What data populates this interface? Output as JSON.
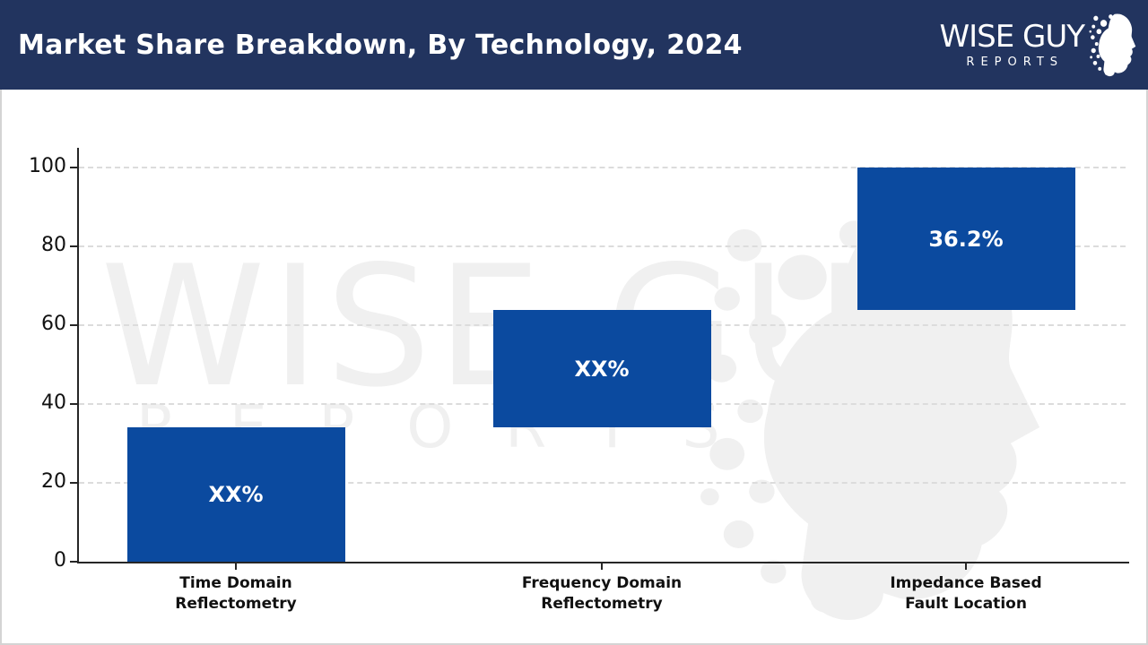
{
  "header": {
    "title": "Market Share Breakdown, By Technology, 2024",
    "logo": {
      "line1": "WISE GUY",
      "line2": "REPORTS"
    }
  },
  "watermark": {
    "line1": "WISE GUY",
    "line2": "REPORTS"
  },
  "colors": {
    "header_bg": "#22345f",
    "bar": "#0b4a9f",
    "bar_label": "#ffffff",
    "grid": "#dcdcdc",
    "axis": "#262626",
    "tick_text": "#111111",
    "watermark": "#f0f0f0",
    "frame_border": "#d4d4d4"
  },
  "chart_data": {
    "type": "bar",
    "subtype": "waterfall-stacked-percentage",
    "title": "Market Share Breakdown, By Technology, 2024",
    "categories": [
      [
        "Time Domain",
        "Reflectometry"
      ],
      [
        "Frequency Domain",
        "Reflectometry"
      ],
      [
        "Impedance Based",
        "Fault Location"
      ]
    ],
    "segments": [
      {
        "name": "Time Domain Reflectometry",
        "start": 0,
        "end": 34.1,
        "label": "XX%"
      },
      {
        "name": "Frequency Domain Reflectometry",
        "start": 34.1,
        "end": 63.8,
        "label": "XX%"
      },
      {
        "name": "Impedance Based Fault Location",
        "start": 63.8,
        "end": 100,
        "label": "36.2%"
      }
    ],
    "ylim": [
      0,
      100
    ],
    "yticks": [
      0,
      20,
      40,
      60,
      80,
      100
    ],
    "grid": "horizontal-dashed",
    "legend": "none",
    "xlabel": "",
    "ylabel": ""
  }
}
